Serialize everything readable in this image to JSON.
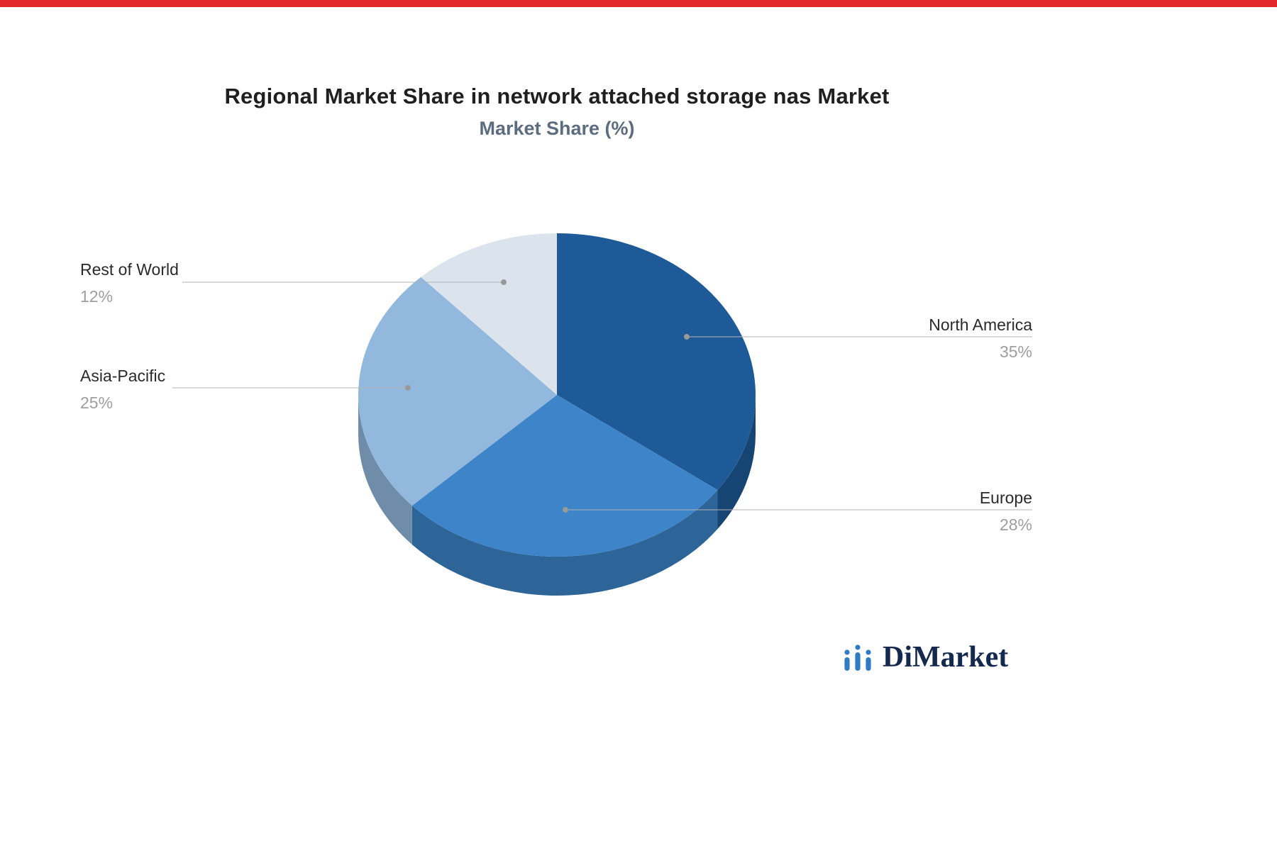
{
  "page": {
    "top_bar_color": "#e5252c"
  },
  "header": {
    "title": "Regional Market Share in network attached storage nas Market",
    "title_color": "#1f1f1f",
    "subtitle": "Market Share (%)",
    "subtitle_color": "#5b6d7e"
  },
  "chart_data": {
    "type": "pie",
    "title": "Regional Market Share in network attached storage nas Market",
    "subtitle": "Market Share (%)",
    "unit": "%",
    "labels": [
      "North America",
      "Europe",
      "Asia-Pacific",
      "Rest of World"
    ],
    "values": [
      35,
      28,
      25,
      12
    ],
    "colors": [
      "#1d5a97",
      "#3d85c8",
      "#92b8dd",
      "#dbe3ed"
    ],
    "start_angle_deg": 0,
    "direction": "clockwise",
    "style": "3d",
    "depth_shade_factor": 0.76,
    "legend_position": "callout-labels"
  },
  "callouts": [
    {
      "label": "North America",
      "value_text": "35%",
      "side": "right"
    },
    {
      "label": "Europe",
      "value_text": "28%",
      "side": "right"
    },
    {
      "label": "Asia-Pacific",
      "value_text": "25%",
      "side": "left"
    },
    {
      "label": "Rest of World",
      "value_text": "12%",
      "side": "left"
    }
  ],
  "colors": {
    "callout_label": "#2a2a2a",
    "callout_value": "#9e9e9e",
    "leader_line": "#b3b3b3",
    "leader_dot": "#999999"
  },
  "branding": {
    "logo_text": "DiMarket",
    "logo_icon": "bar-chart-icon",
    "logo_color": "#14294d",
    "icon_color": "#2e7cc4"
  }
}
